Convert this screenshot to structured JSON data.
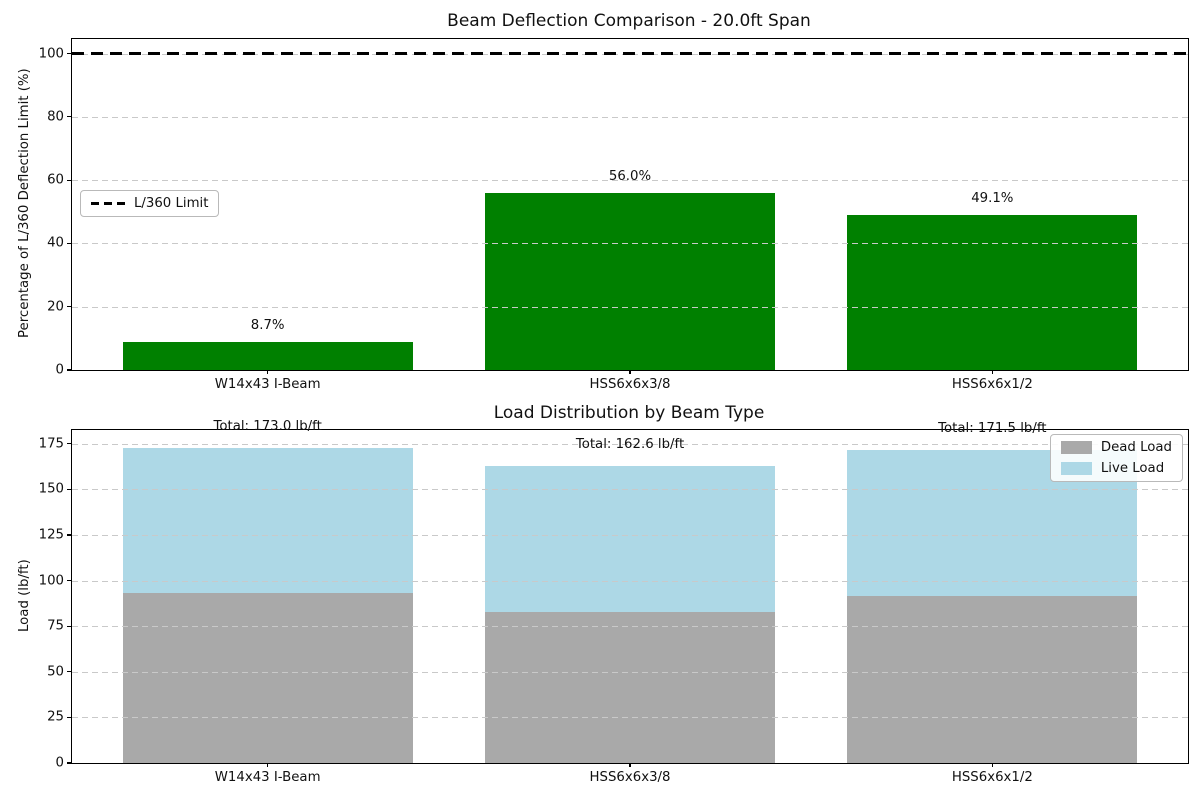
{
  "chart_data": [
    {
      "type": "bar",
      "title": "Beam Deflection Comparison - 20.0ft Span",
      "ylabel": "Percentage of L/360 Deflection Limit (%)",
      "xlabel": "",
      "categories": [
        "W14x43 I-Beam",
        "HSS6x6x3/8",
        "HSS6x6x1/2"
      ],
      "values": [
        8.7,
        56.0,
        49.1
      ],
      "bar_labels": [
        "8.7%",
        "56.0%",
        "49.1%"
      ],
      "bar_color": "#008000",
      "yticks": [
        0,
        20,
        40,
        60,
        80,
        100
      ],
      "ylim": [
        0,
        104.6
      ],
      "grid": true,
      "grid_color": "#c9c9c9",
      "limit_line": {
        "value": 100,
        "label": "L/360 Limit",
        "color": "#000000",
        "style": "dashed"
      },
      "legend_position": "center left"
    },
    {
      "type": "bar",
      "stacked": true,
      "title": "Load Distribution by Beam Type",
      "ylabel": "Load (lb/ft)",
      "xlabel": "",
      "categories": [
        "W14x43 I-Beam",
        "HSS6x6x3/8",
        "HSS6x6x1/2"
      ],
      "series": [
        {
          "name": "Dead Load",
          "color": "#A9A9A9",
          "values": [
            93.0,
            82.6,
            91.5
          ]
        },
        {
          "name": "Live Load",
          "color": "#ADD8E6",
          "values": [
            80.0,
            80.0,
            80.0
          ]
        }
      ],
      "totals": [
        173.0,
        162.6,
        171.5
      ],
      "total_labels": [
        "Total: 173.0 lb/ft",
        "Total: 162.6 lb/ft",
        "Total: 171.5 lb/ft"
      ],
      "yticks": [
        0,
        25,
        50,
        75,
        100,
        125,
        150,
        175
      ],
      "ylim": [
        0,
        182.6
      ],
      "grid": true,
      "grid_color": "#c9c9c9",
      "legend_position": "upper right"
    }
  ]
}
